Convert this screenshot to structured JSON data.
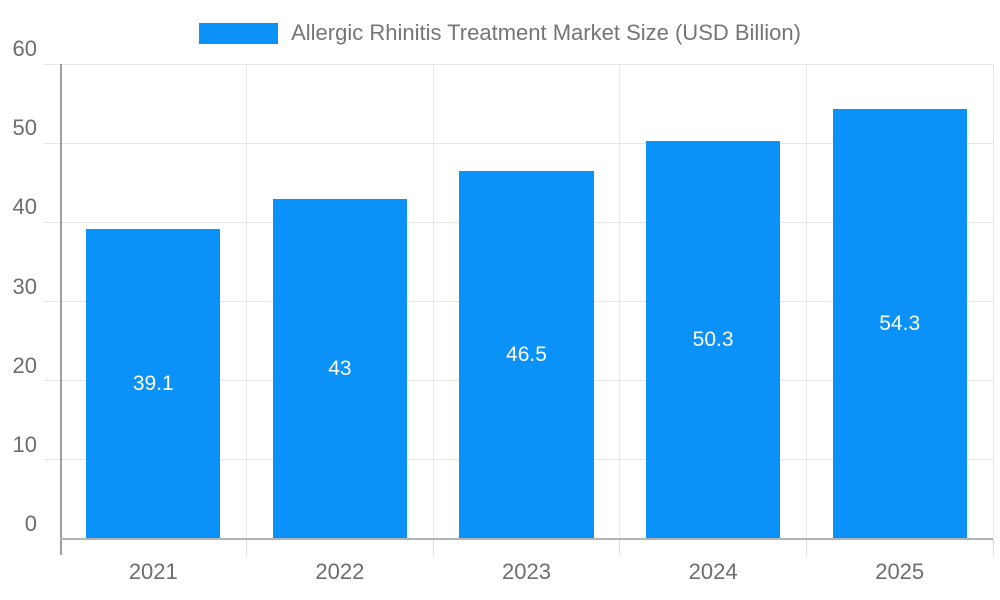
{
  "legend": {
    "label": "Allergic Rhinitis Treatment Market Size (USD Billion)"
  },
  "chart_data": {
    "type": "bar",
    "categories": [
      "2021",
      "2022",
      "2023",
      "2024",
      "2025"
    ],
    "values": [
      39.1,
      43,
      46.5,
      50.3,
      54.3
    ],
    "series_name": "Allergic Rhinitis Treatment Market Size (USD Billion)",
    "title": "",
    "xlabel": "",
    "ylabel": "",
    "ylim": [
      0,
      60
    ],
    "y_ticks": [
      0,
      10,
      20,
      30,
      40,
      50,
      60
    ],
    "grid": true,
    "legend_position": "top",
    "colors": {
      "bar": "#0b92f8",
      "bar_label": "#ffffff",
      "axis_text": "#6d6d6d",
      "legend_text": "#757575",
      "gridline": "#e6e6e6",
      "axis_line": "#9e9e9e",
      "baseline": "#b3b3b3"
    },
    "bar_width_fraction": 0.72
  }
}
